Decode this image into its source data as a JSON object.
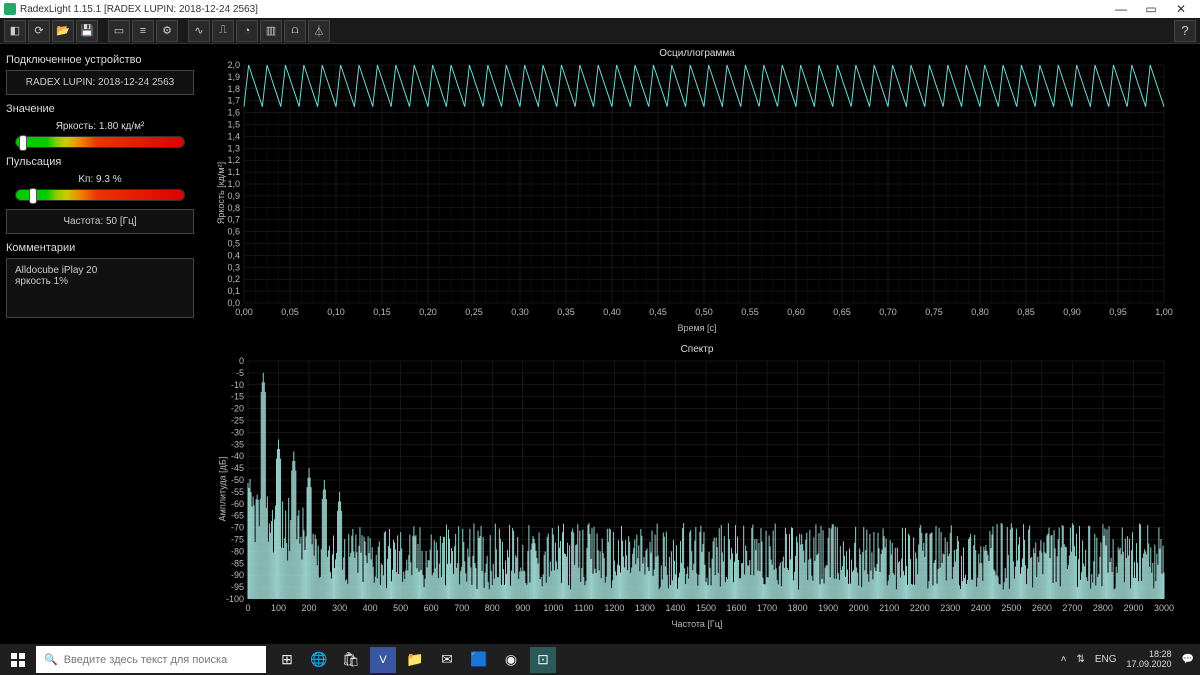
{
  "window": {
    "title": "RadexLight 1.15.1 [RADEX LUPIN: 2018-12-24 2563]"
  },
  "sidebar": {
    "device_section": "Подключенное устройство",
    "device_name": "RADEX LUPIN: 2018-12-24 2563",
    "value_section": "Значение",
    "brightness_label": "Яркость: 1.80 кд/м²",
    "pulsation_section": "Пульсация",
    "pulsation_label": "Kп: 9.3 %",
    "frequency_label": "Частота: 50 [Гц]",
    "comments_section": "Комментарии",
    "comments_text": "Alldocube iPlay 20\nяркость 1%",
    "brightness_marker_pct": 4,
    "pulsation_marker_pct": 10
  },
  "oscillogram": {
    "title": "Осциллограмма",
    "ylabel": "Яркость [кд/м²]",
    "xlabel": "Время [с]",
    "type": "line",
    "line_color": "#6fd8d4",
    "line_width": 1,
    "background_color": "#000000",
    "grid_color": "#2a2a2a",
    "ylim": [
      0,
      2.0
    ],
    "ytick_step": 0.1,
    "yticks": [
      "0,0",
      "0,1",
      "0,2",
      "0,3",
      "0,4",
      "0,5",
      "0,6",
      "0,7",
      "0,8",
      "0,9",
      "1,0",
      "1,1",
      "1,2",
      "1,3",
      "1,4",
      "1,5",
      "1,6",
      "1,7",
      "1,8",
      "1,9",
      "2,0"
    ],
    "xlim": [
      0,
      1.0
    ],
    "xtick_step": 0.05,
    "xticks": [
      "0,00",
      "0,05",
      "0,10",
      "0,15",
      "0,20",
      "0,25",
      "0,30",
      "0,35",
      "0,40",
      "0,45",
      "0,50",
      "0,55",
      "0,60",
      "0,65",
      "0,70",
      "0,75",
      "0,80",
      "0,85",
      "0,90",
      "0,95",
      "1,00"
    ],
    "wave_frequency_hz": 50,
    "wave_min": 1.65,
    "wave_max": 2.0,
    "label_fontsize": 9
  },
  "spectrum": {
    "title": "Спектр",
    "ylabel": "Амплитуда [дБ]",
    "xlabel": "Частота [Гц]",
    "type": "spectrum",
    "line_color": "#a8e6e0",
    "fill_color": "#a8e6e0",
    "background_color": "#000000",
    "grid_color": "#2a2a2a",
    "ylim": [
      -100,
      0
    ],
    "ytick_step": 5,
    "yticks": [
      "0",
      "-5",
      "-10",
      "-15",
      "-20",
      "-25",
      "-30",
      "-35",
      "-40",
      "-45",
      "-50",
      "-55",
      "-60",
      "-65",
      "-70",
      "-75",
      "-80",
      "-85",
      "-90",
      "-95",
      "-100"
    ],
    "xlim": [
      0,
      3000
    ],
    "xtick_step": 100,
    "xticks": [
      "0",
      "100",
      "200",
      "300",
      "400",
      "500",
      "600",
      "700",
      "800",
      "900",
      "1000",
      "1100",
      "1200",
      "1300",
      "1400",
      "1500",
      "1600",
      "1700",
      "1800",
      "1900",
      "2000",
      "2100",
      "2200",
      "2300",
      "2400",
      "2500",
      "2600",
      "2700",
      "2800",
      "2900",
      "3000"
    ],
    "peaks_hz_db": [
      [
        50,
        -5
      ],
      [
        100,
        -33
      ],
      [
        150,
        -38
      ],
      [
        200,
        -45
      ],
      [
        250,
        -50
      ],
      [
        300,
        -55
      ]
    ],
    "noise_floor_db": -82,
    "noise_amplitude_db": 14,
    "label_fontsize": 9
  },
  "taskbar": {
    "search_placeholder": "Введите здесь текст для поиска",
    "lang": "ENG",
    "time": "18:28",
    "date": "17.09.2020",
    "tray_net": "⇅"
  },
  "colors": {
    "bg": "#000000",
    "panel": "#111111",
    "border": "#444444",
    "text": "#dddddd"
  }
}
